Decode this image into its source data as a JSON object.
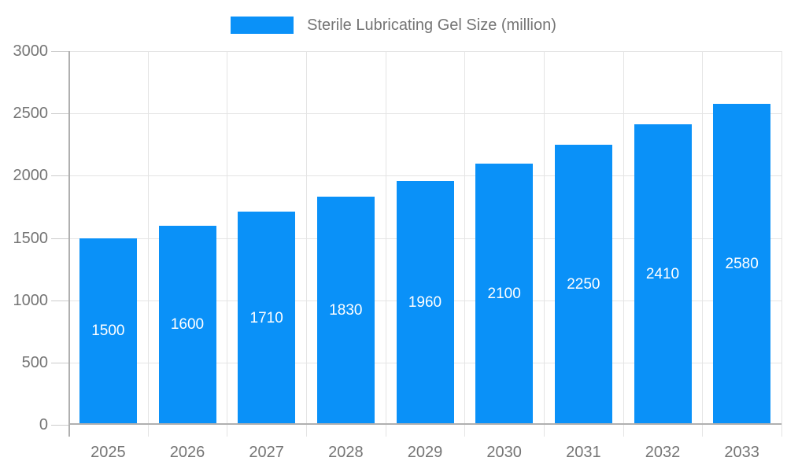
{
  "chart_data": {
    "type": "bar",
    "title": "",
    "legend": "Sterile Lubricating Gel Size (million)",
    "legend_position": "top-center",
    "categories": [
      "2025",
      "2026",
      "2027",
      "2028",
      "2029",
      "2030",
      "2031",
      "2032",
      "2033"
    ],
    "series": [
      {
        "name": "Sterile Lubricating Gel Size (million)",
        "values": [
          1500,
          1600,
          1710,
          1830,
          1960,
          2100,
          2250,
          2410,
          2580
        ],
        "data_labels": [
          "1500",
          "1600",
          "1710",
          "1830",
          "1960",
          "2100",
          "2250",
          "2410",
          "2580"
        ]
      }
    ],
    "xlabel": "",
    "ylabel": "",
    "ylim": [
      0,
      3000
    ],
    "yticks": [
      0,
      500,
      1000,
      1500,
      2000,
      2500,
      3000
    ],
    "grid": true,
    "colors": {
      "bar": "#0a91f8",
      "axis": "#b0b0b0",
      "tick": "#cccccc",
      "grid": "#e4e4e4",
      "tick_text": "#757575",
      "bar_label_text": "#ffffff",
      "background": "#ffffff"
    }
  }
}
